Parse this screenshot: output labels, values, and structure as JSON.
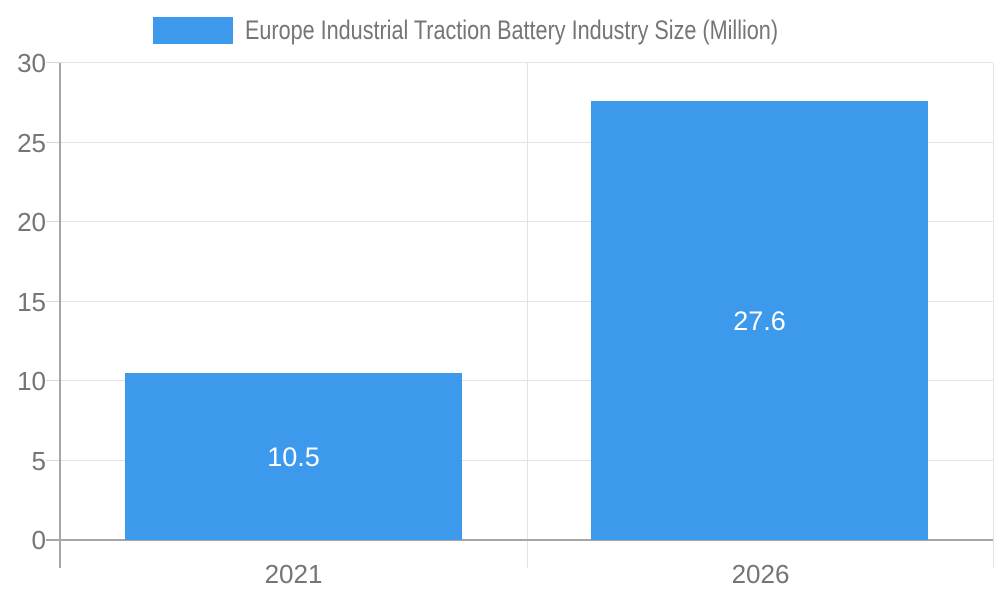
{
  "legend": {
    "label": "Europe Industrial Traction Battery Industry Size (Million)"
  },
  "chart_data": {
    "type": "bar",
    "title": "Europe Industrial Traction Battery Industry Size (Million)",
    "series_name": "Europe Industrial Traction Battery Industry Size (Million)",
    "categories": [
      "2021",
      "2026"
    ],
    "values": [
      10.5,
      27.6
    ],
    "data_labels": [
      "10.5",
      "27.6"
    ],
    "xlabel": "",
    "ylabel": "",
    "ylim": [
      0,
      30
    ],
    "ytick_step": 5,
    "yticks": [
      0,
      5,
      10,
      15,
      20,
      25,
      30
    ],
    "grid": true,
    "legend_position": "top",
    "colors": {
      "bar": "#3C99EC",
      "value_label": "#ffffff",
      "axis_text": "#757575",
      "gridline": "#e3e3e3",
      "tick": "#d8d8d8",
      "axis_line": "#a6a6a6",
      "background": "#ffffff"
    }
  }
}
